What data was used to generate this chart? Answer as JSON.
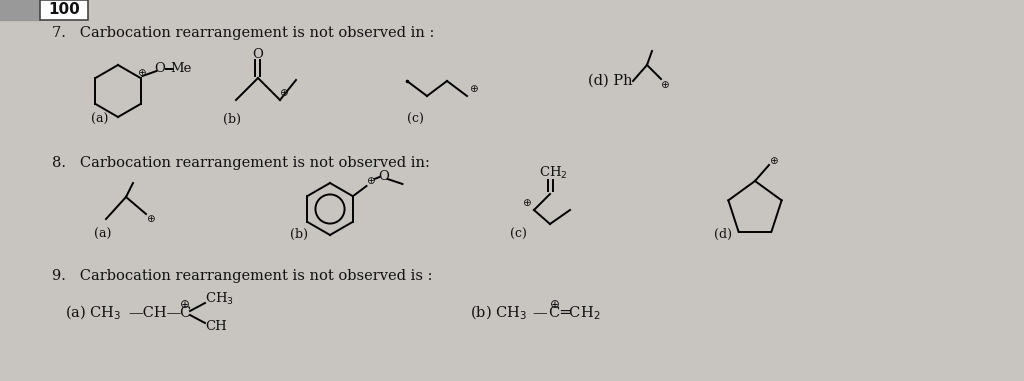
{
  "bg_light": "#c8c4c0",
  "paper_color": "#e2ddd8",
  "text_color": "#111111",
  "q7_text": "7.   Carbocation rearrangement is not observed in :",
  "q8_text": "8.   Carbocation rearrangement is not observed in:",
  "q9_text": "9.   Carbocation rearrangement is not observed is :",
  "lw": 1.4,
  "fs_label": 9,
  "fs_text": 10.5,
  "fs_chem": 9.5,
  "fs_plus": 7.5
}
